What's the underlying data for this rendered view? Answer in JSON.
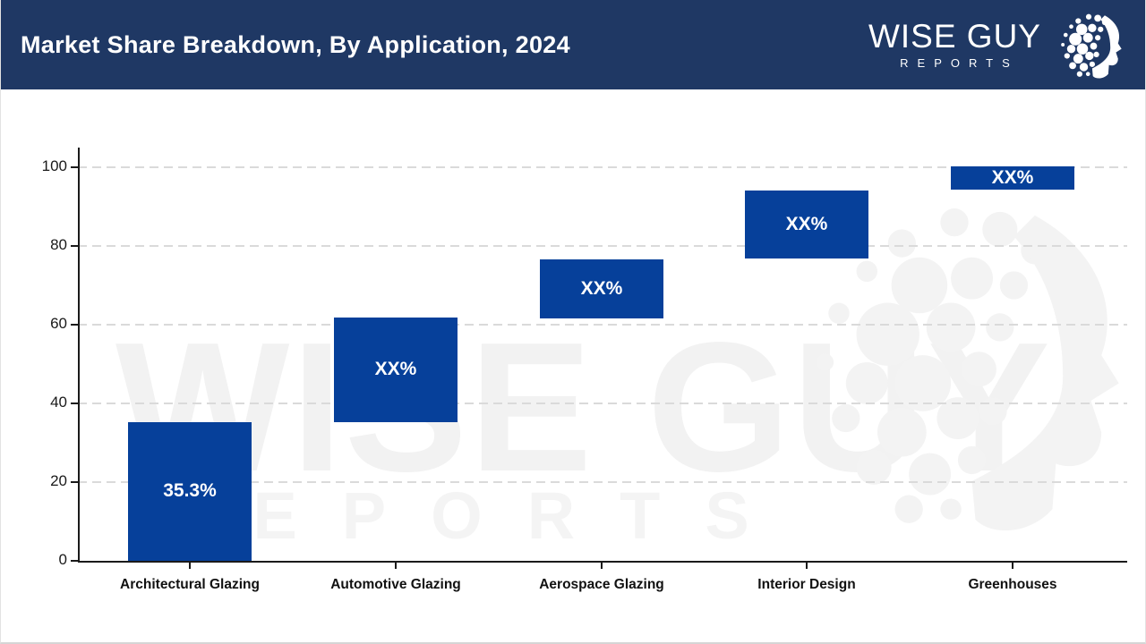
{
  "header": {
    "title": "Market Share Breakdown, By Application, 2024",
    "bg_color": "#1f3864",
    "logo": {
      "line1": "WISE GUY",
      "line2": "REPORTS"
    }
  },
  "watermark": {
    "line1": "WISE GUY",
    "line2": "REPORTS"
  },
  "chart_data": {
    "type": "bar",
    "variant": "waterfall",
    "title": "Market Share Breakdown, By Application, 2024",
    "categories": [
      "Architectural Glazing",
      "Automotive Glazing",
      "Aerospace Glazing",
      "Interior Design",
      "Greenhouses"
    ],
    "bars": [
      {
        "category": "Architectural Glazing",
        "start": 0,
        "end": 35.3,
        "label": "35.3%"
      },
      {
        "category": "Automotive Glazing",
        "start": 35.3,
        "end": 61.9,
        "label": "XX%"
      },
      {
        "category": "Aerospace Glazing",
        "start": 61.7,
        "end": 76.6,
        "label": "XX%"
      },
      {
        "category": "Interior Design",
        "start": 76.8,
        "end": 94.1,
        "label": "XX%"
      },
      {
        "category": "Greenhouses",
        "start": 94.3,
        "end": 100.2,
        "label": "XX%"
      }
    ],
    "xlabel": "",
    "ylabel": "",
    "yticks": [
      0,
      20,
      40,
      60,
      80,
      100
    ],
    "ylim": [
      0,
      105
    ],
    "grid": "horizontal-dashed",
    "legend": "none",
    "bar_color": "#06409a",
    "bar_label_color": "#ffffff",
    "axis_color": "#1a1a1a"
  }
}
